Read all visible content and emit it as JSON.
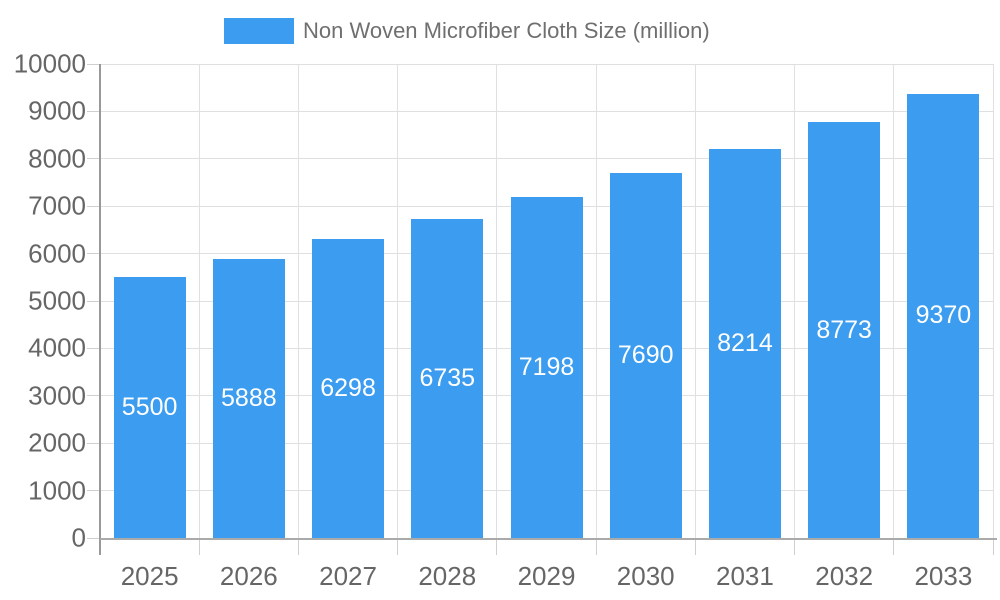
{
  "legend": {
    "label": "Non Woven Microfiber Cloth Size (million)"
  },
  "chart_data": {
    "type": "bar",
    "title": "",
    "categories": [
      "2025",
      "2026",
      "2027",
      "2028",
      "2029",
      "2030",
      "2031",
      "2032",
      "2033"
    ],
    "values": [
      5500,
      5888,
      6298,
      6735,
      7198,
      7690,
      8214,
      8773,
      9370
    ],
    "series_name": "Non Woven Microfiber Cloth Size (million)",
    "xlabel": "",
    "ylabel": "",
    "ylim": [
      0,
      10000
    ],
    "ytick_step": 1000,
    "yticks": [
      "0",
      "1000",
      "2000",
      "3000",
      "4000",
      "5000",
      "6000",
      "7000",
      "8000",
      "9000",
      "10000"
    ],
    "grid": true,
    "legend_position": "top-center",
    "value_label_position": "inside-center"
  },
  "colors": {
    "bar": "#3B9CF0",
    "grid": "#E0E0E0",
    "y_axis_line": "#999999",
    "x_axis_line": "#AAAAAA",
    "tick": "#CFCFCF",
    "axis_text": "#666666",
    "legend_text": "#6F6F6F",
    "bar_label": "#FFFFFF",
    "background": "#FFFFFF"
  }
}
